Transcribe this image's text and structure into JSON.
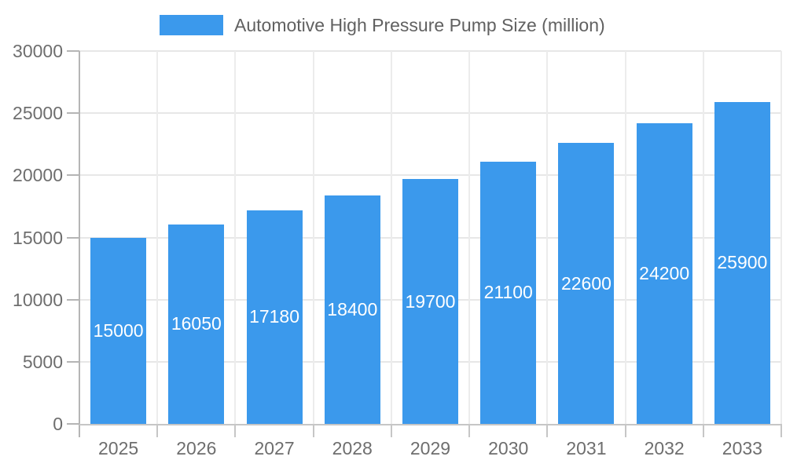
{
  "chart_data": {
    "type": "bar",
    "title": "Automotive High Pressure Pump Size (million)",
    "categories": [
      "2025",
      "2026",
      "2027",
      "2028",
      "2029",
      "2030",
      "2031",
      "2032",
      "2033"
    ],
    "values": [
      15000,
      16050,
      17180,
      18400,
      19700,
      21100,
      22600,
      24200,
      25900
    ],
    "series": [
      {
        "name": "Automotive High Pressure Pump Size (million)",
        "values": [
          15000,
          16050,
          17180,
          18400,
          19700,
          21100,
          22600,
          24200,
          25900
        ]
      }
    ],
    "xlabel": "",
    "ylabel": "",
    "ylim": [
      0,
      30000
    ],
    "yticks": [
      0,
      5000,
      10000,
      15000,
      20000,
      25000,
      30000
    ],
    "grid": true,
    "legend_position": "top",
    "value_labels": "inside-center"
  },
  "colors": {
    "bar": "#3B99EC",
    "value_label": "#FFFFFF",
    "axis_text": "#6E6E6E",
    "legend_text": "#616161",
    "grid_line": "#E7E7E7",
    "vgrid_line": "#ECECEC",
    "axis_line": "#B5B5B5",
    "bottom_line": "#C6C6C6",
    "background": "#FFFFFF"
  }
}
